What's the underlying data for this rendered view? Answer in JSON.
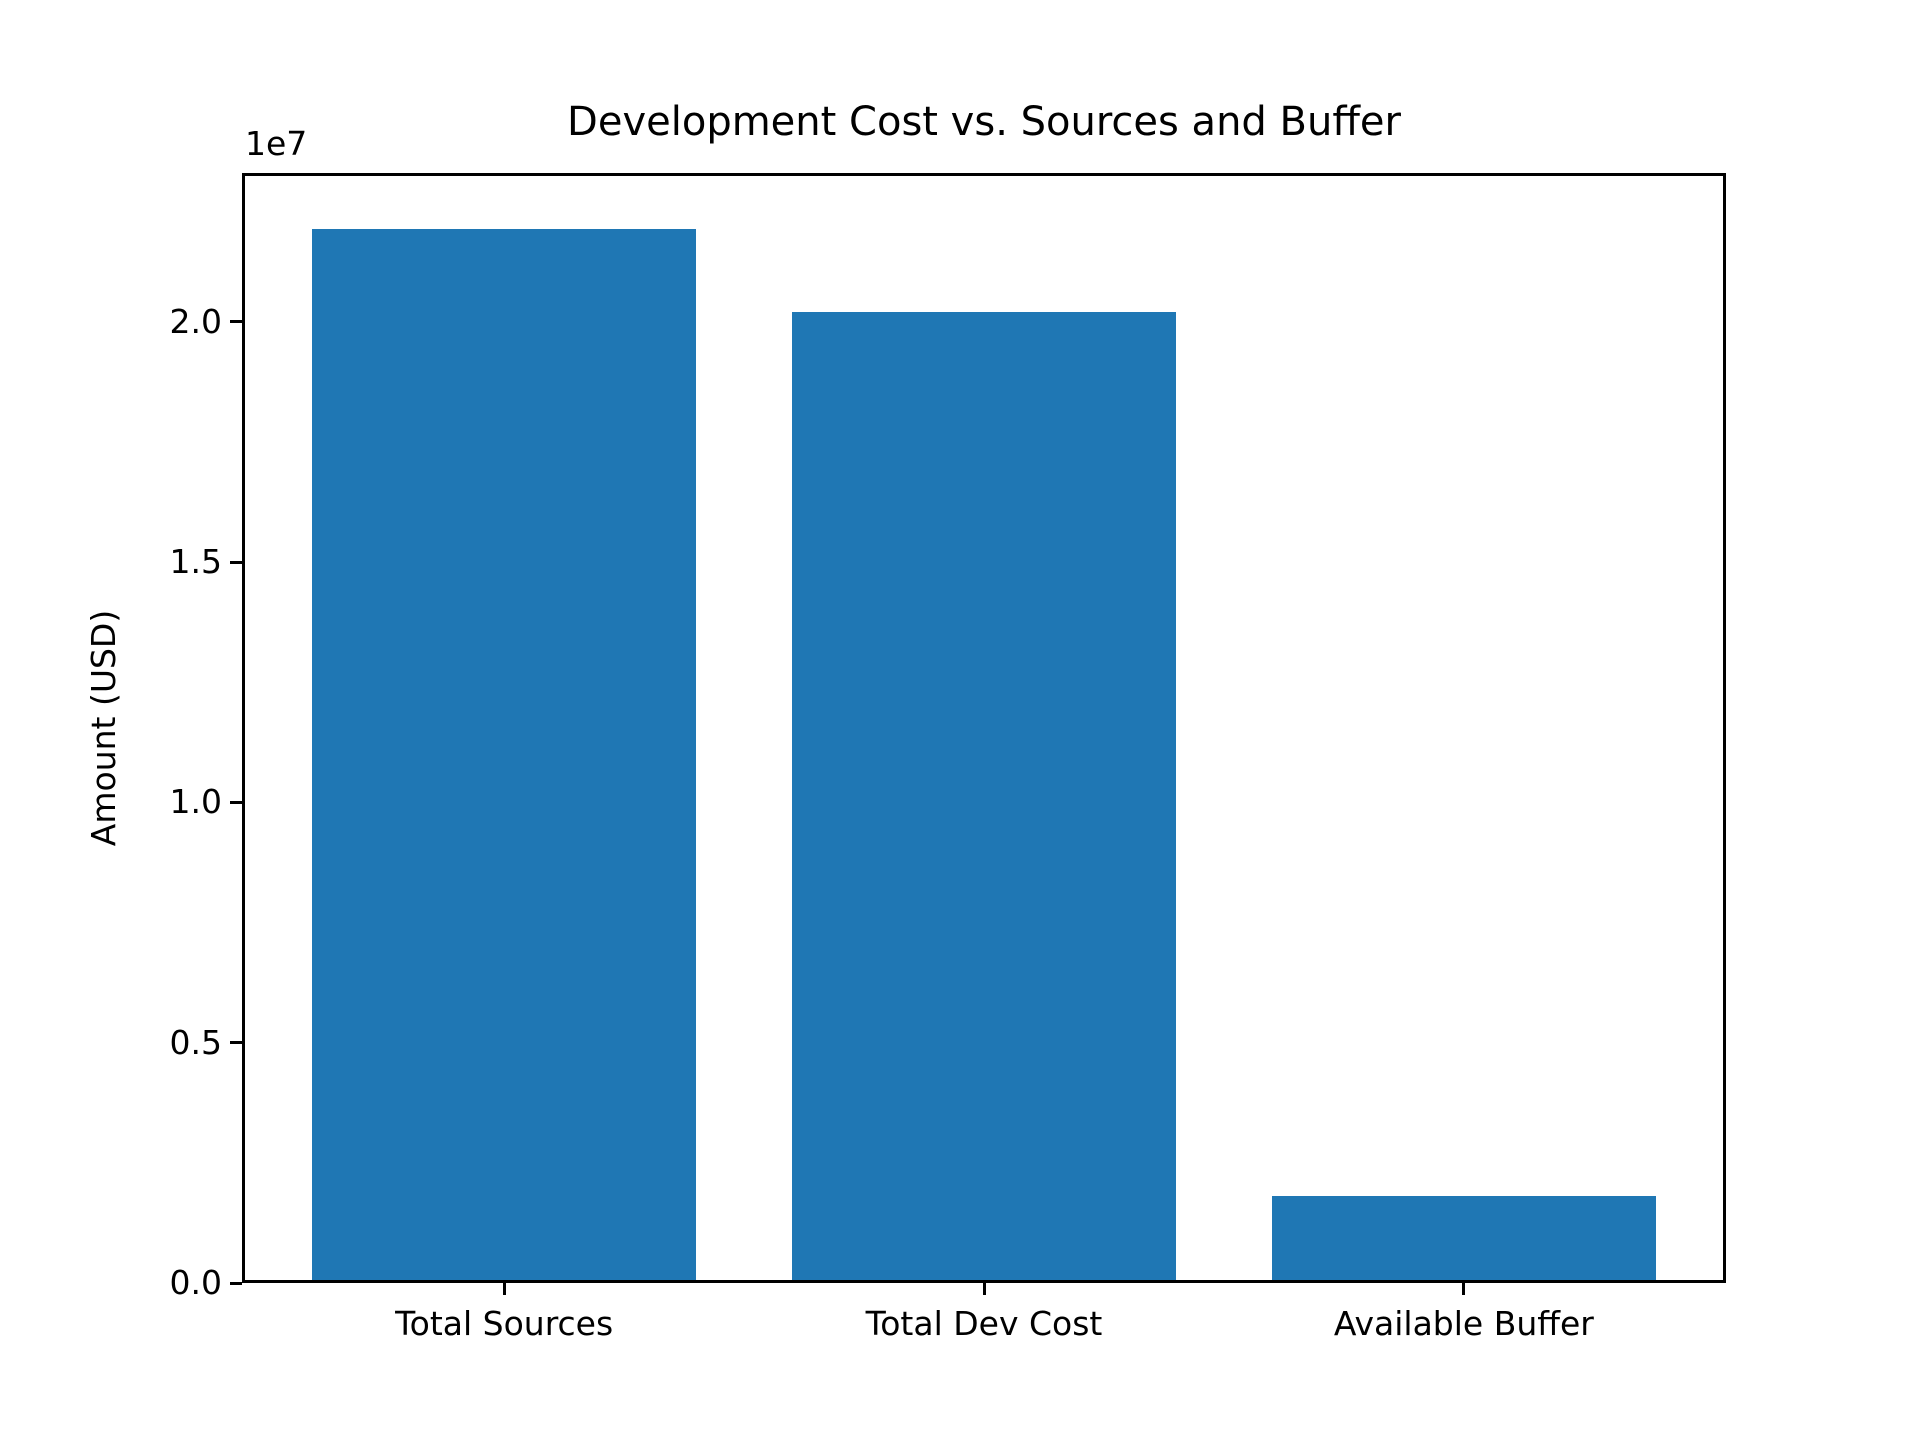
{
  "chart_data": {
    "type": "bar",
    "title": "Development Cost vs. Sources and Buffer",
    "ylabel": "Amount (USD)",
    "xlabel": "",
    "categories": [
      "Total Sources",
      "Total Dev Cost",
      "Available Buffer"
    ],
    "values": [
      22000000,
      20250000,
      1750000
    ],
    "bar_color": "#1f77b4",
    "axis_color": "#000000",
    "background_color": "#ffffff",
    "ylim": [
      0,
      23100000
    ],
    "xlim": [
      -0.54,
      2.54
    ],
    "bar_width": 0.8,
    "yticks": {
      "values": [
        0,
        5000000,
        10000000,
        15000000,
        20000000
      ],
      "labels": [
        "0.0",
        "0.5",
        "1.0",
        "1.5",
        "2.0"
      ]
    },
    "offset_label": "1e7",
    "grid": false,
    "legend": false
  }
}
